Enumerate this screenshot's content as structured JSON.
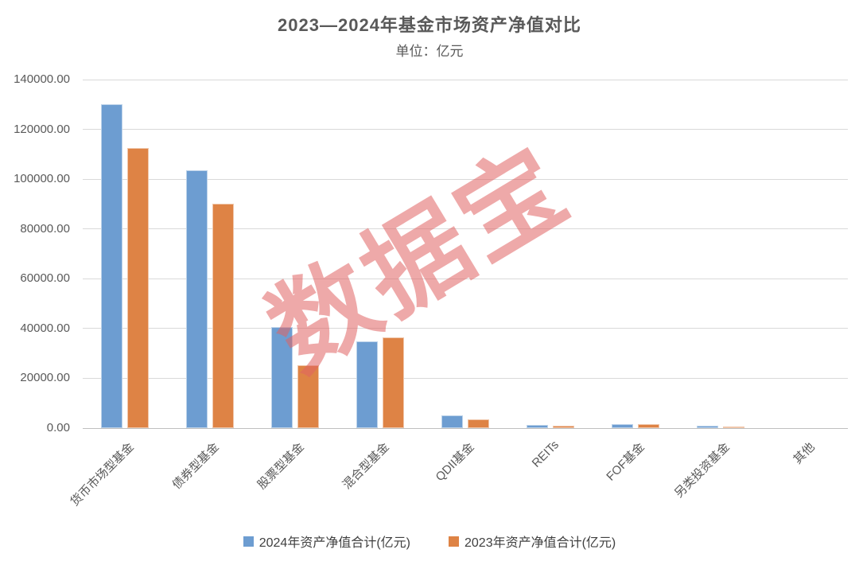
{
  "title": "2023—2024年基金市场资产净值对比",
  "subtitle": "单位：亿元",
  "watermark": "数据宝",
  "colors": {
    "series_2024": "#6D9DD1",
    "series_2023": "#DE8345",
    "gridline": "#d9d9d9",
    "axis_text": "#595959",
    "watermark": "rgba(224,98,98,0.55)"
  },
  "chart_data": {
    "type": "bar",
    "title": "2023—2024年基金市场资产净值对比",
    "subtitle": "单位：亿元",
    "xlabel": "",
    "ylabel": "亿元",
    "ylim": [
      0,
      140000
    ],
    "ytick_step": 20000,
    "ytick_labels": [
      "0.00",
      "20000.00",
      "40000.00",
      "60000.00",
      "80000.00",
      "100000.00",
      "120000.00",
      "140000.00"
    ],
    "grid": true,
    "legend_position": "bottom",
    "categories": [
      "货币市场型基金",
      "债券型基金",
      "股票型基金",
      "混合型基金",
      "QDII基金",
      "REITs",
      "FOF基金",
      "另类投资基金",
      "其他"
    ],
    "series": [
      {
        "name": "2024年资产净值合计(亿元)",
        "color": "#6D9DD1",
        "values": [
          130200,
          103600,
          40700,
          34700,
          5100,
          1400,
          1600,
          900,
          0
        ]
      },
      {
        "name": "2023年资产净值合计(亿元)",
        "color": "#DE8345",
        "values": [
          112500,
          90100,
          25300,
          36600,
          3600,
          1000,
          1700,
          600,
          0
        ]
      }
    ]
  }
}
